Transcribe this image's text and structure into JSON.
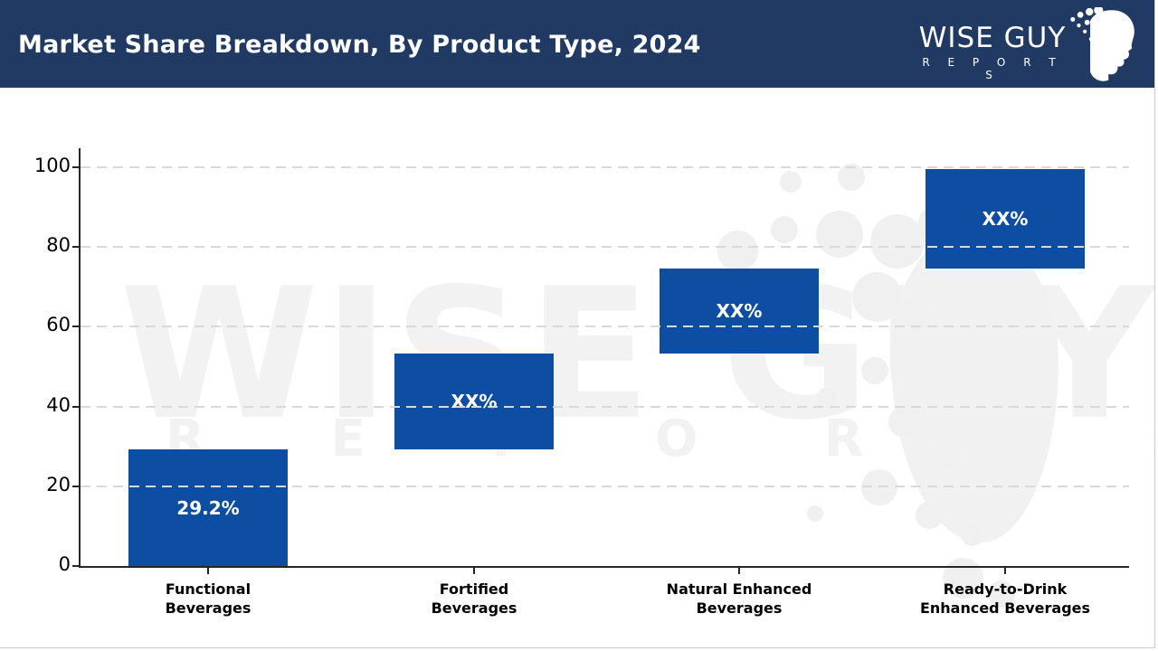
{
  "header": {
    "title": "Market Share Breakdown, By Product Type, 2024",
    "background_color": "#213a64",
    "logo": {
      "line1": "WISE GUY",
      "line2": "R E P O R T S"
    }
  },
  "watermark": {
    "line1": "WISE GUY",
    "line2": "R E P O R T S"
  },
  "chart_data": {
    "type": "bar",
    "variant": "waterfall",
    "title": "Market Share Breakdown, By Product Type, 2024",
    "categories": [
      "Functional Beverages",
      "Fortified Beverages",
      "Natural Enhanced Beverages",
      "Ready-to-Drink Enhanced Beverages"
    ],
    "categories_display": [
      "Functional\nBeverages",
      "Fortified\nBeverages",
      "Natural Enhanced\nBeverages",
      "Ready-to-Drink\nEnhanced Beverages"
    ],
    "segments": [
      {
        "category": "Functional Beverages",
        "start": 0,
        "end": 29.2,
        "label": "29.2%"
      },
      {
        "category": "Fortified Beverages",
        "start": 29.2,
        "end": 53.3,
        "label": "XX%"
      },
      {
        "category": "Natural Enhanced Beverages",
        "start": 53.3,
        "end": 74.6,
        "label": "XX%"
      },
      {
        "category": "Ready-to-Drink Enhanced Beverages",
        "start": 74.6,
        "end": 99.5,
        "label": "XX%"
      }
    ],
    "y_ticks": [
      0,
      20,
      40,
      60,
      80,
      100
    ],
    "ylim": [
      0,
      105
    ],
    "xlabel": "",
    "ylabel": "",
    "grid": true,
    "gridline_style": "dashed",
    "gridline_color": "#d9d9d9",
    "bar_color": "#0d4da2",
    "label_color": "#ffffff",
    "legend": false
  }
}
